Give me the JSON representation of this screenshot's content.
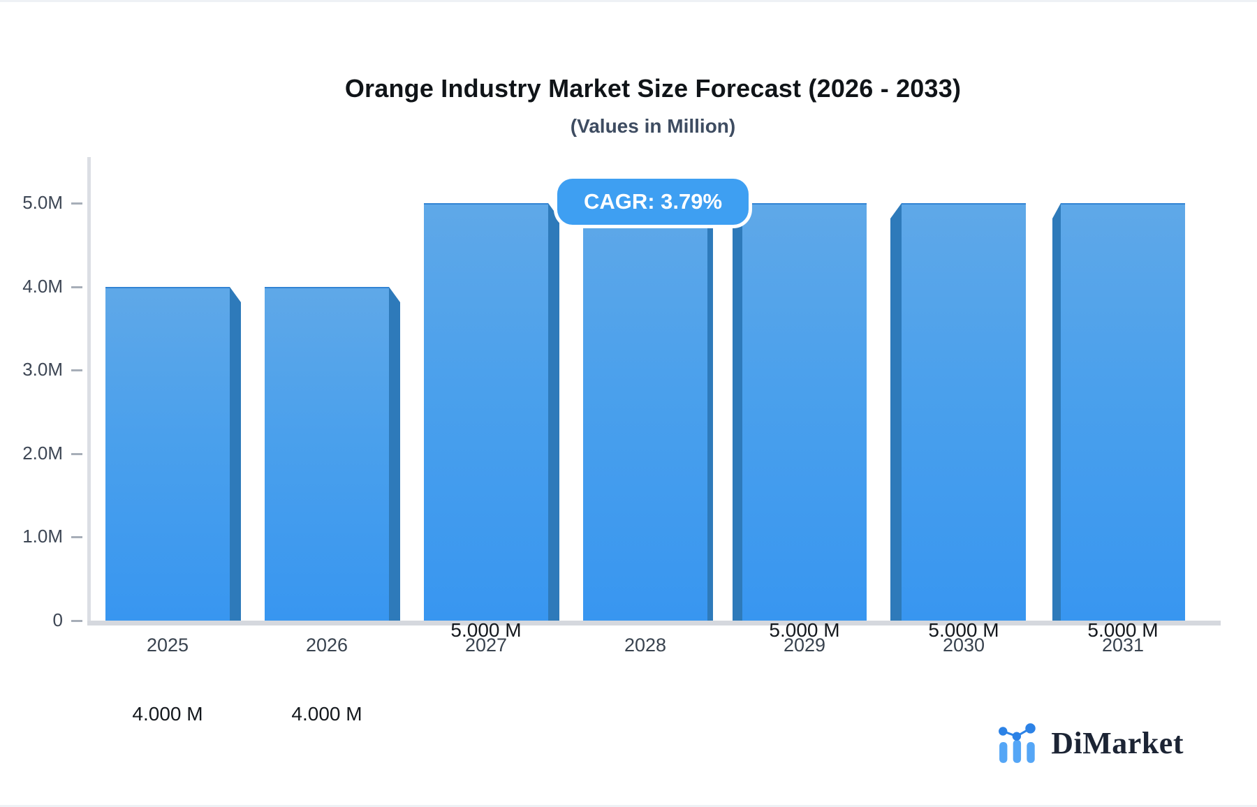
{
  "chart": {
    "title": "Orange Industry Market Size Forecast (2026 - 2033)",
    "subtitle": "(Values in Million)",
    "cagr_label": "CAGR: 3.79%"
  },
  "chart_data": {
    "type": "bar",
    "title": "Orange Industry Market Size Forecast (2026 - 2033)",
    "subtitle": "(Values in Million)",
    "categories": [
      "2025",
      "2026",
      "2027",
      "2028",
      "2029",
      "2030",
      "2031"
    ],
    "values": [
      4000000,
      4000000,
      5000000,
      5000000,
      5000000,
      5000000,
      5000000
    ],
    "value_labels": [
      "4.000 M",
      "4.000 M",
      "5.000 M",
      "",
      "5.000 M",
      "5.000 M",
      "5.000 M"
    ],
    "annotation": "CAGR: 3.79%",
    "xlabel": "",
    "ylabel": "",
    "ylim": [
      0,
      5000000
    ],
    "y_tick_values": [
      0,
      1000000,
      2000000,
      3000000,
      4000000,
      5000000
    ],
    "y_tick_labels": [
      "0",
      "1.0M",
      "2.0M",
      "3.0M",
      "4.0M",
      "5.0M"
    ],
    "grid": false,
    "legend": false,
    "colors": {
      "bar_top": "#5fa8e8",
      "bar_bottom": "#3896f0",
      "bar_side": "#2e7aba",
      "badge_bg": "#3e9ff2",
      "badge_text": "#ffffff",
      "axis_line": "#dbdee4",
      "baseline": "#d5d8de",
      "tick": "#a7aeb8",
      "y_label": "#3d4654",
      "x_label": "#39434f",
      "value_label": "#14181d",
      "title": "#101418",
      "subtitle": "#3e4c61"
    }
  },
  "footer": {
    "brand": "DiMarket",
    "logo_icon": "mini-bar-chart-icon",
    "logo_blue": "#55a6f6",
    "logo_dark_blue": "#2c82e6"
  }
}
